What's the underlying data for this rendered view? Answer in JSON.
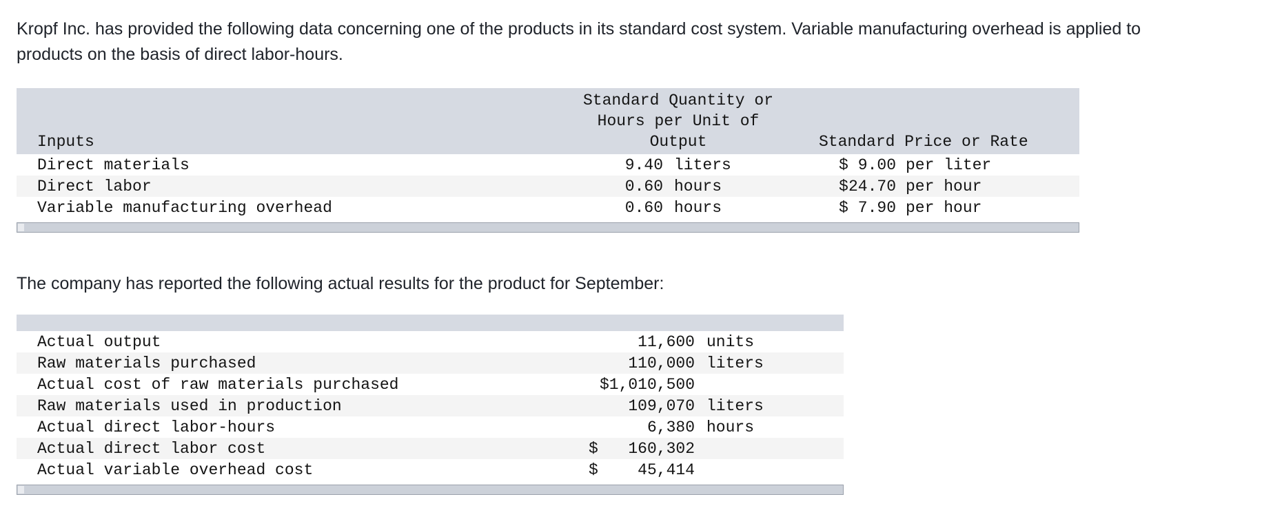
{
  "intro": "Kropf Inc. has provided the following data concerning one of the products in its standard cost system. Variable manufacturing overhead is applied to products on the basis of direct labor-hours.",
  "standards_table": {
    "header": {
      "inputs": "Inputs",
      "qty_line1": "Standard Quantity or",
      "qty_line2": "Hours per Unit of",
      "qty_line3": "Output",
      "price": "Standard Price or Rate"
    },
    "rows": [
      {
        "label": "Direct materials",
        "qty": "9.40",
        "qty_unit": "liters",
        "dollar": "$",
        "price": "9.00",
        "price_unit": "per liter"
      },
      {
        "label": "Direct labor",
        "qty": "0.60",
        "qty_unit": "hours",
        "dollar": "$",
        "price": "24.70",
        "price_unit": "per hour"
      },
      {
        "label": "Variable manufacturing overhead",
        "qty": "0.60",
        "qty_unit": "hours",
        "dollar": "$",
        "price": "7.90",
        "price_unit": "per hour"
      }
    ]
  },
  "actuals_intro": "The company has reported the following actual results for the product for September:",
  "actuals_table": {
    "rows": [
      {
        "label": "Actual output",
        "dollar": "",
        "value": "11,600",
        "unit": "units"
      },
      {
        "label": "Raw materials purchased",
        "dollar": "",
        "value": "110,000",
        "unit": "liters"
      },
      {
        "label": "Actual cost of raw materials purchased",
        "dollar": "",
        "value": "$1,010,500",
        "unit": ""
      },
      {
        "label": "Raw materials used in production",
        "dollar": "",
        "value": "109,070",
        "unit": "liters"
      },
      {
        "label": "Actual direct labor-hours",
        "dollar": "",
        "value": "6,380",
        "unit": "hours"
      },
      {
        "label": "Actual direct labor cost",
        "dollar": "$",
        "value": "160,302",
        "unit": ""
      },
      {
        "label": "Actual variable overhead cost",
        "dollar": "$",
        "value": "45,414",
        "unit": ""
      }
    ]
  },
  "colors": {
    "header_band": "#d6dae2",
    "stripe": "#f4f4f4",
    "scrollbar": "#ccd1d9"
  }
}
